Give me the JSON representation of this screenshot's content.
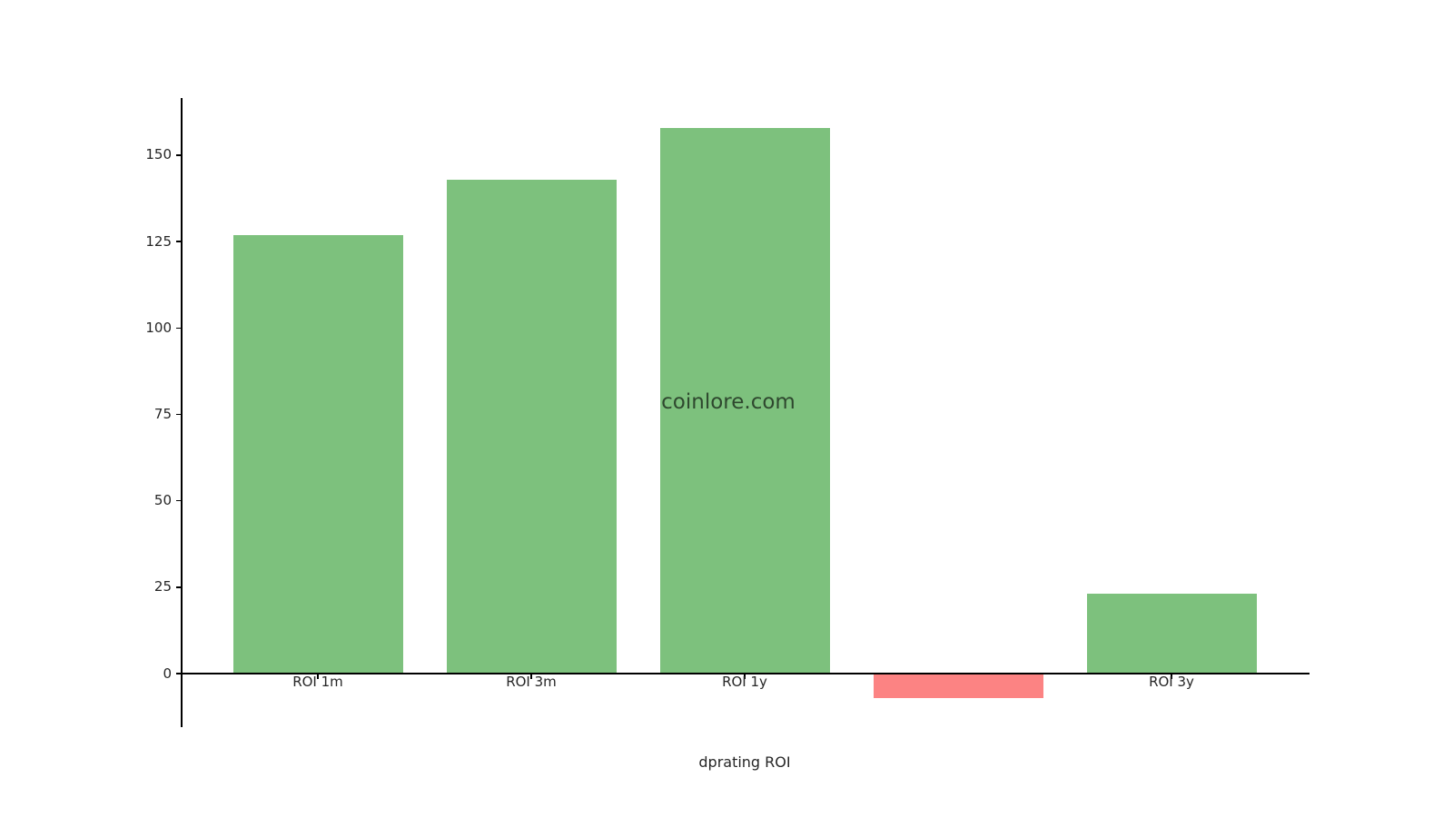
{
  "watermark": "coinlore.com",
  "chart_data": {
    "type": "bar",
    "categories": [
      "ROI 1m",
      "ROI 3m",
      "ROI 1y",
      "",
      "ROI 3y"
    ],
    "values": [
      127,
      143,
      158,
      -7,
      23
    ],
    "title": "",
    "xlabel": "dprating ROI",
    "ylabel": "",
    "ylim": [
      -15.5,
      166.5
    ],
    "yticks": [
      0,
      25,
      50,
      75,
      100,
      125,
      150
    ],
    "grid": false,
    "legend_position": "none",
    "positive_color": "#7dc17d",
    "negative_color": "#fc8383",
    "axis_color": "#000000",
    "tick_label_color": "#262626"
  }
}
